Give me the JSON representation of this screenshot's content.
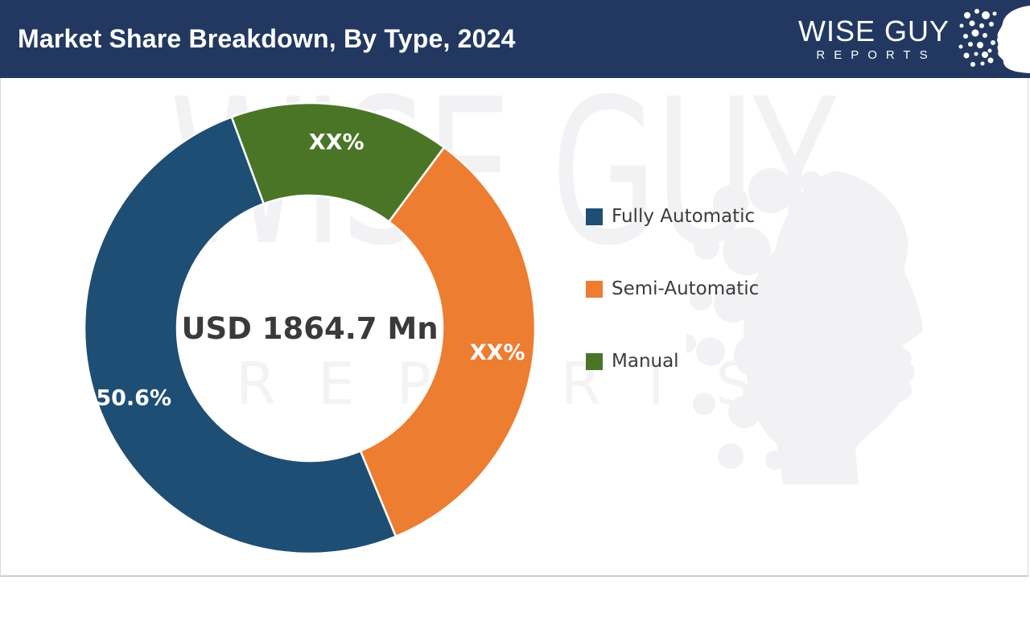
{
  "header": {
    "title": "Market Share Breakdown, By Type, 2024",
    "logo": {
      "line1": "WISE GUY",
      "line2": "REPORTS"
    }
  },
  "chart_data": {
    "type": "pie",
    "subtype": "donut",
    "title": "Market Share Breakdown, By Type, 2024",
    "center_label": "USD 1864.7 Mn",
    "start_angle_deg": 110.3,
    "direction": "counterclockwise",
    "legend_position": "right",
    "slices": [
      {
        "label": "Fully Automatic",
        "display_pct": "50.6%",
        "value_pct": 50.6,
        "color": "#1F4E74"
      },
      {
        "label": "Semi-Automatic",
        "display_pct": "XX%",
        "value_pct": 33.6,
        "color": "#ED7D31"
      },
      {
        "label": "Manual",
        "display_pct": "XX%",
        "value_pct": 15.8,
        "color": "#4A7527"
      }
    ]
  },
  "legend": {
    "items": [
      {
        "label": "Fully Automatic"
      },
      {
        "label": "Semi-Automatic"
      },
      {
        "label": "Manual"
      }
    ]
  },
  "watermark": {
    "word1": "WISE GUY",
    "word2": "REPORTS"
  },
  "colors": {
    "header_bg": "#233861",
    "watermark": "#f2f2f4",
    "text_dark": "#3a3a3a",
    "frame_border": "#d9d9d9"
  }
}
